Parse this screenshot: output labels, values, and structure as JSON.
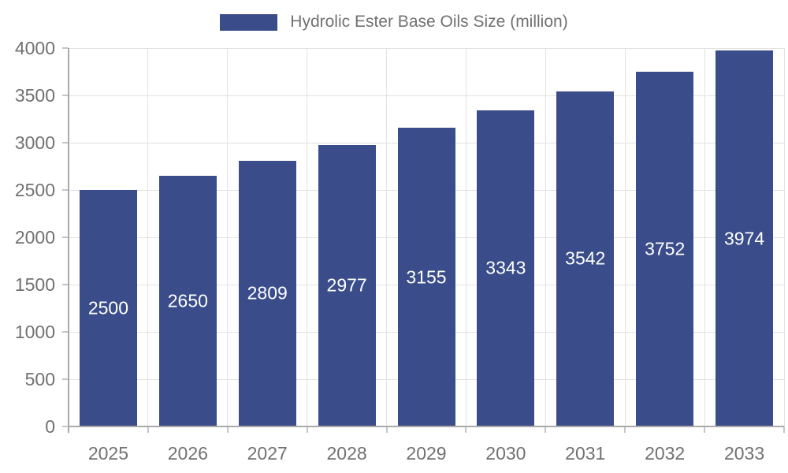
{
  "legend": {
    "label": "Hydrolic Ester Base Oils Size (million)"
  },
  "colors": {
    "bar": "#3a4d8a",
    "bar_value_text": "#ffffff",
    "axis_text": "#717171",
    "grid_line": "#e2e2e2",
    "axis_line": "#aaaaaa",
    "tick_mark": "#c2c6cc",
    "background": "#ffffff"
  },
  "chart_data": {
    "type": "bar",
    "title": "Hydrolic Ester Base Oils Size (million)",
    "categories": [
      "2025",
      "2026",
      "2027",
      "2028",
      "2029",
      "2030",
      "2031",
      "2032",
      "2033"
    ],
    "values": [
      2500,
      2650,
      2809,
      2977,
      3155,
      3343,
      3542,
      3752,
      3974
    ],
    "xlabel": "",
    "ylabel": "",
    "ylim": [
      0,
      4000
    ],
    "yticks": [
      0,
      500,
      1000,
      1500,
      2000,
      2500,
      3000,
      3500,
      4000
    ],
    "grid": true,
    "legend_position": "top-center",
    "value_label_position": "inside-center"
  }
}
